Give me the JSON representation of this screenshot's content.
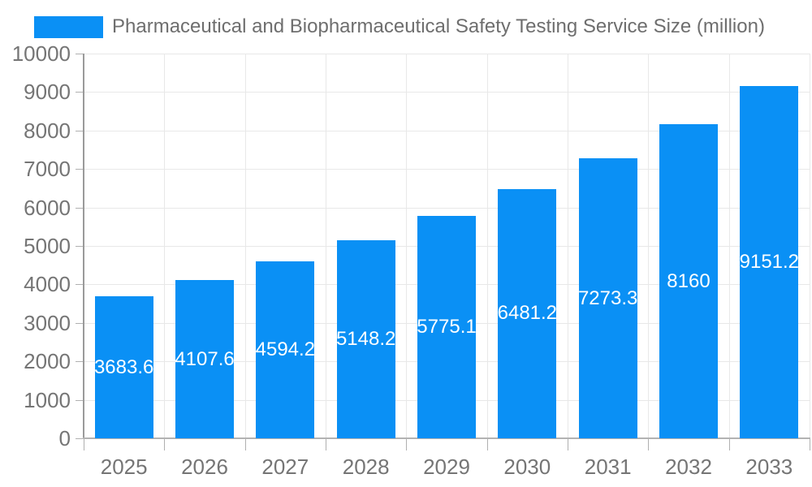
{
  "colors": {
    "bar": "#0a90f5",
    "grid": "#e8e8e8",
    "axis": "#9a9a9a",
    "baseline": "#b3b3b3",
    "tick": "#b0b0b0",
    "axis_label": "#757575",
    "bar_label": "#ffffff",
    "legend_text": "#6e6e6e",
    "background": "#ffffff"
  },
  "legend": {
    "label": "Pharmaceutical and Biopharmaceutical Safety Testing Service Size (million)",
    "position": "top-left"
  },
  "chart_data": {
    "type": "bar",
    "title": "Pharmaceutical and Biopharmaceutical Safety Testing Service Size (million)",
    "categories": [
      "2025",
      "2026",
      "2027",
      "2028",
      "2029",
      "2030",
      "2031",
      "2032",
      "2033"
    ],
    "values": [
      3683.6,
      4107.6,
      4594.2,
      5148.2,
      5775.1,
      6481.2,
      7273.3,
      8160,
      9151.2
    ],
    "bar_labels": [
      "3683.6",
      "4107.6",
      "4594.2",
      "5148.2",
      "5775.1",
      "6481.2",
      "7273.3",
      "8160",
      "9151.2"
    ],
    "bar_label_position": "center-inside",
    "xlabel": "",
    "ylabel": "",
    "ylim": [
      0,
      10000
    ],
    "ytick_step": 1000,
    "yticks": [
      0,
      1000,
      2000,
      3000,
      4000,
      5000,
      6000,
      7000,
      8000,
      9000,
      10000
    ],
    "grid": true,
    "legend_position": "top-left"
  }
}
